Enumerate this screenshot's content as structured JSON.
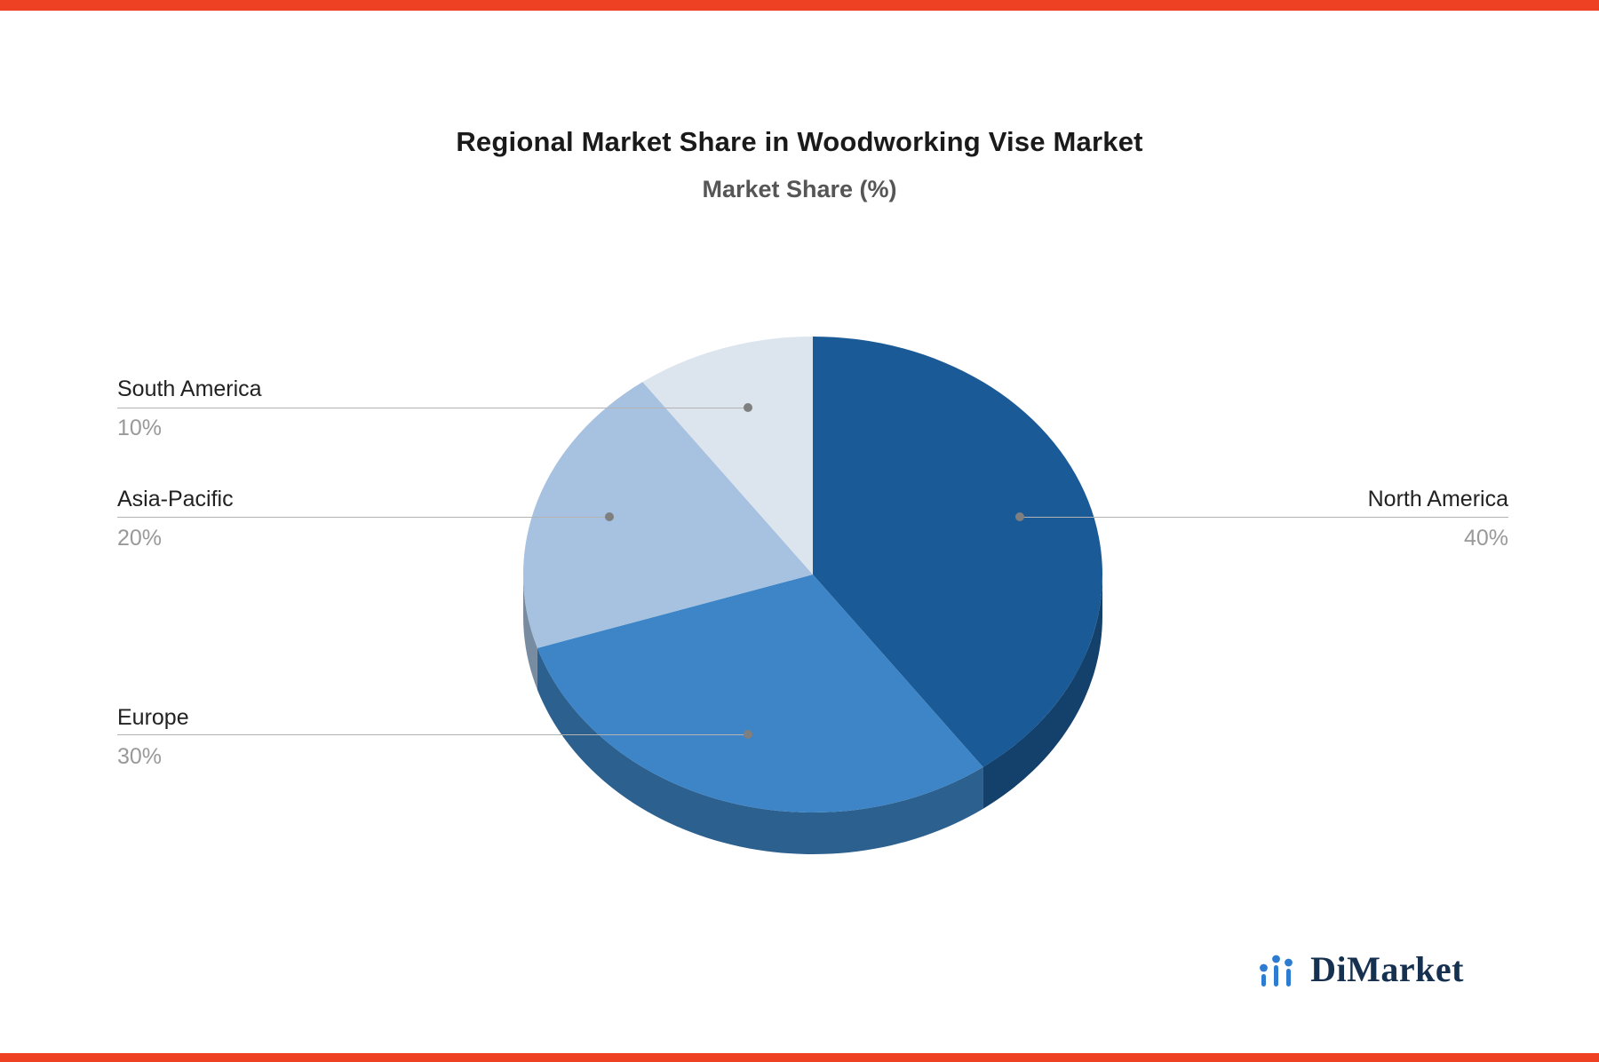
{
  "title": "Regional Market Share in Woodworking Vise Market",
  "subtitle": "Market Share (%)",
  "chart_data": {
    "type": "pie",
    "title": "Regional Market Share in Woodworking Vise Market",
    "subtitle": "Market Share (%)",
    "unit": "%",
    "labels": [
      "North America",
      "Europe",
      "Asia-Pacific",
      "South America"
    ],
    "values": [
      40,
      30,
      20,
      10
    ],
    "colors": [
      "#1a5a96",
      "#3d85c6",
      "#a6c2e0",
      "#dce4ee"
    ],
    "start_angle_deg": 0,
    "direction": "clockwise",
    "effect_3d": true,
    "legend_position": "none",
    "callouts": [
      {
        "label": "North America",
        "value_text": "40%"
      },
      {
        "label": "Europe",
        "value_text": "30%"
      },
      {
        "label": "Asia-Pacific",
        "value_text": "20%"
      },
      {
        "label": "South America",
        "value_text": "10%"
      }
    ]
  },
  "labels": {
    "south_america": {
      "name": "South America",
      "pct": "10%"
    },
    "asia_pacific": {
      "name": "Asia-Pacific",
      "pct": "20%"
    },
    "europe": {
      "name": "Europe",
      "pct": "30%"
    },
    "north_america": {
      "name": "North America",
      "pct": "40%"
    }
  },
  "brand": {
    "logo_text": "DiMarket",
    "logo_text_color": "#16314f",
    "logo_icon_color": "#2d7cd1"
  },
  "accent_strip_color": "#ee4023"
}
